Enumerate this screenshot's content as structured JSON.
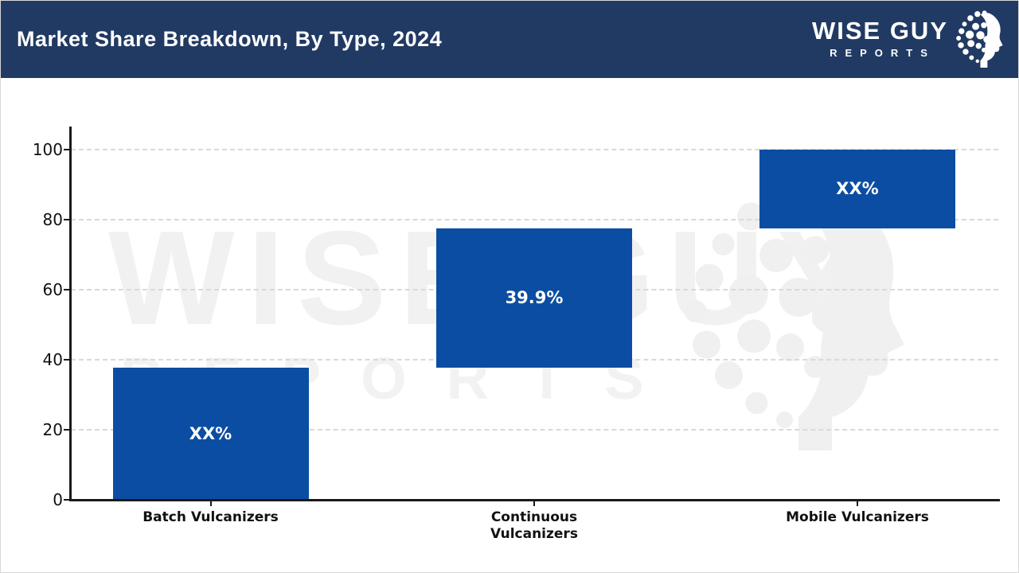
{
  "header": {
    "title": "Market Share Breakdown, By Type, 2024",
    "bg_color": "#213a63",
    "logo": {
      "line1": "WISE GUY",
      "line2": "REPORTS"
    }
  },
  "watermark": {
    "line1": "WISE GUY",
    "line2": "REPORTS"
  },
  "chart_data": {
    "type": "bar",
    "subtype": "waterfall-floating-bars",
    "title": "Market Share Breakdown, By Type, 2024",
    "categories": [
      "Batch Vulcanizers",
      "Continuous\nVulcanizers",
      "Mobile Vulcanizers"
    ],
    "series": [
      {
        "name": "Market share (%)",
        "segments": [
          {
            "start": 0,
            "end": 37.7,
            "value": 37.7,
            "label": "XX%"
          },
          {
            "start": 37.7,
            "end": 77.6,
            "value": 39.9,
            "label": "39.9%"
          },
          {
            "start": 77.6,
            "end": 100,
            "value": 22.4,
            "label": "XX%"
          }
        ]
      }
    ],
    "xlabel": "",
    "ylabel": "",
    "ylim": [
      0,
      100
    ],
    "yticks": [
      0,
      20,
      40,
      60,
      80,
      100
    ],
    "grid": "horizontal-dashed",
    "legend": "none",
    "bar_color": "#0b4da2",
    "bar_label_color": "#ffffff",
    "grid_color": "#d9d9d9",
    "axis_color": "#1a1a1a"
  }
}
